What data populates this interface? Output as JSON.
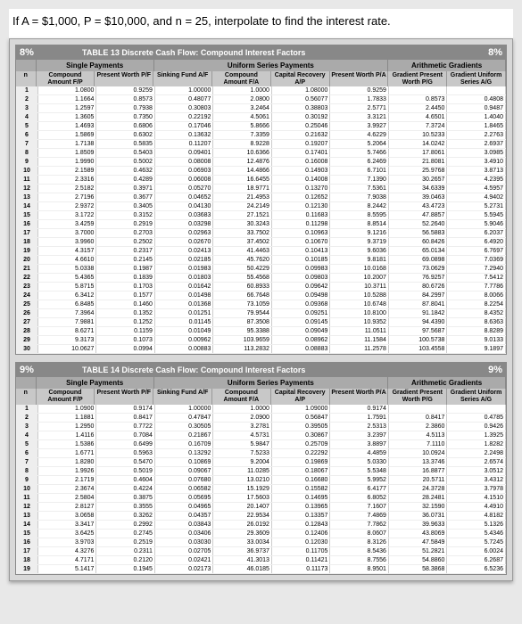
{
  "question": "If A = $1,000, P = $10,000, and n = 25, interpolate to find the interest rate.",
  "t13": {
    "pct": "8%",
    "title": "TABLE 13   Discrete Cash Flow: Compound Interest Factors",
    "groups": [
      "Single Payments",
      "Uniform Series Payments",
      "Arithmetic Gradients"
    ],
    "heads": [
      "n",
      "Compound Amount F/P",
      "Present Worth P/F",
      "Sinking Fund A/F",
      "Compound Amount F/A",
      "Capital Recovery A/P",
      "Present Worth P/A",
      "Gradient Present Worth P/G",
      "Gradient Uniform Series A/G"
    ],
    "rows": [
      [
        "1",
        "1.0800",
        "0.9259",
        "1.00000",
        "1.0000",
        "1.08000",
        "0.9259",
        "",
        ""
      ],
      [
        "2",
        "1.1664",
        "0.8573",
        "0.48077",
        "2.0800",
        "0.56077",
        "1.7833",
        "0.8573",
        "0.4808"
      ],
      [
        "3",
        "1.2597",
        "0.7938",
        "0.30803",
        "3.2464",
        "0.38803",
        "2.5771",
        "2.4450",
        "0.9487"
      ],
      [
        "4",
        "1.3605",
        "0.7350",
        "0.22192",
        "4.5061",
        "0.30192",
        "3.3121",
        "4.6501",
        "1.4040"
      ],
      [
        "5",
        "1.4693",
        "0.6806",
        "0.17046",
        "5.8666",
        "0.25046",
        "3.9927",
        "7.3724",
        "1.8465"
      ],
      [
        "6",
        "1.5869",
        "0.6302",
        "0.13632",
        "7.3359",
        "0.21632",
        "4.6229",
        "10.5233",
        "2.2763"
      ],
      [
        "7",
        "1.7138",
        "0.5835",
        "0.11207",
        "8.9228",
        "0.19207",
        "5.2064",
        "14.0242",
        "2.6937"
      ],
      [
        "8",
        "1.8509",
        "0.5403",
        "0.09401",
        "10.6366",
        "0.17401",
        "5.7466",
        "17.8061",
        "3.0985"
      ],
      [
        "9",
        "1.9990",
        "0.5002",
        "0.08008",
        "12.4876",
        "0.16008",
        "6.2469",
        "21.8081",
        "3.4910"
      ],
      [
        "10",
        "2.1589",
        "0.4632",
        "0.06903",
        "14.4866",
        "0.14903",
        "6.7101",
        "25.9768",
        "3.8713"
      ],
      [
        "11",
        "2.3316",
        "0.4289",
        "0.06008",
        "16.6455",
        "0.14008",
        "7.1390",
        "30.2657",
        "4.2395"
      ],
      [
        "12",
        "2.5182",
        "0.3971",
        "0.05270",
        "18.9771",
        "0.13270",
        "7.5361",
        "34.6339",
        "4.5957"
      ],
      [
        "13",
        "2.7196",
        "0.3677",
        "0.04652",
        "21.4953",
        "0.12652",
        "7.9038",
        "39.0463",
        "4.9402"
      ],
      [
        "14",
        "2.9372",
        "0.3405",
        "0.04130",
        "24.2149",
        "0.12130",
        "8.2442",
        "43.4723",
        "5.2731"
      ],
      [
        "15",
        "3.1722",
        "0.3152",
        "0.03683",
        "27.1521",
        "0.11683",
        "8.5595",
        "47.8857",
        "5.5945"
      ],
      [
        "16",
        "3.4259",
        "0.2919",
        "0.03298",
        "30.3243",
        "0.11298",
        "8.8514",
        "52.2640",
        "5.9046"
      ],
      [
        "17",
        "3.7000",
        "0.2703",
        "0.02963",
        "33.7502",
        "0.10963",
        "9.1216",
        "56.5883",
        "6.2037"
      ],
      [
        "18",
        "3.9960",
        "0.2502",
        "0.02670",
        "37.4502",
        "0.10670",
        "9.3719",
        "60.8426",
        "6.4920"
      ],
      [
        "19",
        "4.3157",
        "0.2317",
        "0.02413",
        "41.4463",
        "0.10413",
        "9.6036",
        "65.0134",
        "6.7697"
      ],
      [
        "20",
        "4.6610",
        "0.2145",
        "0.02185",
        "45.7620",
        "0.10185",
        "9.8181",
        "69.0898",
        "7.0369"
      ],
      [
        "21",
        "5.0338",
        "0.1987",
        "0.01983",
        "50.4229",
        "0.09983",
        "10.0168",
        "73.0629",
        "7.2940"
      ],
      [
        "22",
        "5.4365",
        "0.1839",
        "0.01803",
        "55.4568",
        "0.09803",
        "10.2007",
        "76.9257",
        "7.5412"
      ],
      [
        "23",
        "5.8715",
        "0.1703",
        "0.01642",
        "60.8933",
        "0.09642",
        "10.3711",
        "80.6726",
        "7.7786"
      ],
      [
        "24",
        "6.3412",
        "0.1577",
        "0.01498",
        "66.7648",
        "0.09498",
        "10.5288",
        "84.2997",
        "8.0066"
      ],
      [
        "25",
        "6.8485",
        "0.1460",
        "0.01368",
        "73.1059",
        "0.09368",
        "10.6748",
        "87.8041",
        "8.2254"
      ],
      [
        "26",
        "7.3964",
        "0.1352",
        "0.01251",
        "79.9544",
        "0.09251",
        "10.8100",
        "91.1842",
        "8.4352"
      ],
      [
        "27",
        "7.9881",
        "0.1252",
        "0.01145",
        "87.3508",
        "0.09145",
        "10.9352",
        "94.4390",
        "8.6363"
      ],
      [
        "28",
        "8.6271",
        "0.1159",
        "0.01049",
        "95.3388",
        "0.09049",
        "11.0511",
        "97.5687",
        "8.8289"
      ],
      [
        "29",
        "9.3173",
        "0.1073",
        "0.00962",
        "103.9659",
        "0.08962",
        "11.1584",
        "100.5738",
        "9.0133"
      ],
      [
        "30",
        "10.0627",
        "0.0994",
        "0.00883",
        "113.2832",
        "0.08883",
        "11.2578",
        "103.4558",
        "9.1897"
      ]
    ]
  },
  "t14": {
    "pct": "9%",
    "title": "TABLE 14   Discrete Cash Flow: Compound Interest Factors",
    "groups": [
      "Single Payments",
      "Uniform Series Payments",
      "Arithmetic Gradients"
    ],
    "heads": [
      "n",
      "Compound Amount F/P",
      "Present Worth P/F",
      "Sinking Fund A/F",
      "Compound Amount F/A",
      "Capital Recovery A/P",
      "Present Worth P/A",
      "Gradient Present Worth P/G",
      "Gradient Uniform Series A/G"
    ],
    "rows": [
      [
        "1",
        "1.0900",
        "0.9174",
        "1.00000",
        "1.0000",
        "1.09000",
        "0.9174",
        "",
        ""
      ],
      [
        "2",
        "1.1881",
        "0.8417",
        "0.47847",
        "2.0900",
        "0.56847",
        "1.7591",
        "0.8417",
        "0.4785"
      ],
      [
        "3",
        "1.2950",
        "0.7722",
        "0.30505",
        "3.2781",
        "0.39505",
        "2.5313",
        "2.3860",
        "0.9426"
      ],
      [
        "4",
        "1.4116",
        "0.7084",
        "0.21867",
        "4.5731",
        "0.30867",
        "3.2397",
        "4.5113",
        "1.3925"
      ],
      [
        "5",
        "1.5386",
        "0.6499",
        "0.16709",
        "5.9847",
        "0.25709",
        "3.8897",
        "7.1110",
        "1.8282"
      ],
      [
        "6",
        "1.6771",
        "0.5963",
        "0.13292",
        "7.5233",
        "0.22292",
        "4.4859",
        "10.0924",
        "2.2498"
      ],
      [
        "7",
        "1.8280",
        "0.5470",
        "0.10869",
        "9.2004",
        "0.19869",
        "5.0330",
        "13.3746",
        "2.6574"
      ],
      [
        "8",
        "1.9926",
        "0.5019",
        "0.09067",
        "11.0285",
        "0.18067",
        "5.5348",
        "16.8877",
        "3.0512"
      ],
      [
        "9",
        "2.1719",
        "0.4604",
        "0.07680",
        "13.0210",
        "0.16680",
        "5.9952",
        "20.5711",
        "3.4312"
      ],
      [
        "10",
        "2.3674",
        "0.4224",
        "0.06582",
        "15.1929",
        "0.15582",
        "6.4177",
        "24.3728",
        "3.7978"
      ],
      [
        "11",
        "2.5804",
        "0.3875",
        "0.05695",
        "17.5603",
        "0.14695",
        "6.8052",
        "28.2481",
        "4.1510"
      ],
      [
        "12",
        "2.8127",
        "0.3555",
        "0.04965",
        "20.1407",
        "0.13965",
        "7.1607",
        "32.1590",
        "4.4910"
      ],
      [
        "13",
        "3.0658",
        "0.3262",
        "0.04357",
        "22.9534",
        "0.13357",
        "7.4869",
        "36.0731",
        "4.8182"
      ],
      [
        "14",
        "3.3417",
        "0.2992",
        "0.03843",
        "26.0192",
        "0.12843",
        "7.7862",
        "39.9633",
        "5.1326"
      ],
      [
        "15",
        "3.6425",
        "0.2745",
        "0.03406",
        "29.3609",
        "0.12406",
        "8.0607",
        "43.8069",
        "5.4346"
      ],
      [
        "16",
        "3.9703",
        "0.2519",
        "0.03030",
        "33.0034",
        "0.12030",
        "8.3126",
        "47.5849",
        "5.7245"
      ],
      [
        "17",
        "4.3276",
        "0.2311",
        "0.02705",
        "36.9737",
        "0.11705",
        "8.5436",
        "51.2821",
        "6.0024"
      ],
      [
        "18",
        "4.7171",
        "0.2120",
        "0.02421",
        "41.3013",
        "0.11421",
        "8.7556",
        "54.8860",
        "6.2687"
      ],
      [
        "19",
        "5.1417",
        "0.1945",
        "0.02173",
        "46.0185",
        "0.11173",
        "8.9501",
        "58.3868",
        "6.5236"
      ]
    ]
  }
}
